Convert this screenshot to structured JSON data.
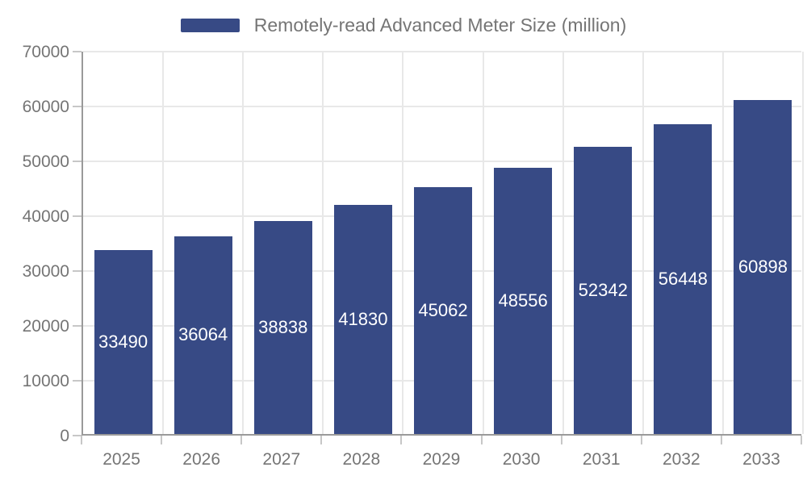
{
  "chart_data": {
    "type": "bar",
    "title": "",
    "legend": "Remotely-read Advanced Meter Size (million)",
    "categories": [
      "2025",
      "2026",
      "2027",
      "2028",
      "2029",
      "2030",
      "2031",
      "2032",
      "2033"
    ],
    "values": [
      33490,
      36064,
      38838,
      41830,
      45062,
      48556,
      52342,
      56448,
      60898
    ],
    "xlabel": "",
    "ylabel": "",
    "ylim": [
      0,
      70000
    ],
    "ytick_step": 10000,
    "grid": true,
    "legend_position": "top-center",
    "value_labels": "inside-center",
    "colors": {
      "bar": "#374a85",
      "bar_label": "#ffffff",
      "axis_line": "#9a9a9a",
      "gridline": "#e8e8e8",
      "tick": "#c7c7c7",
      "axis_text": "#757575"
    }
  }
}
